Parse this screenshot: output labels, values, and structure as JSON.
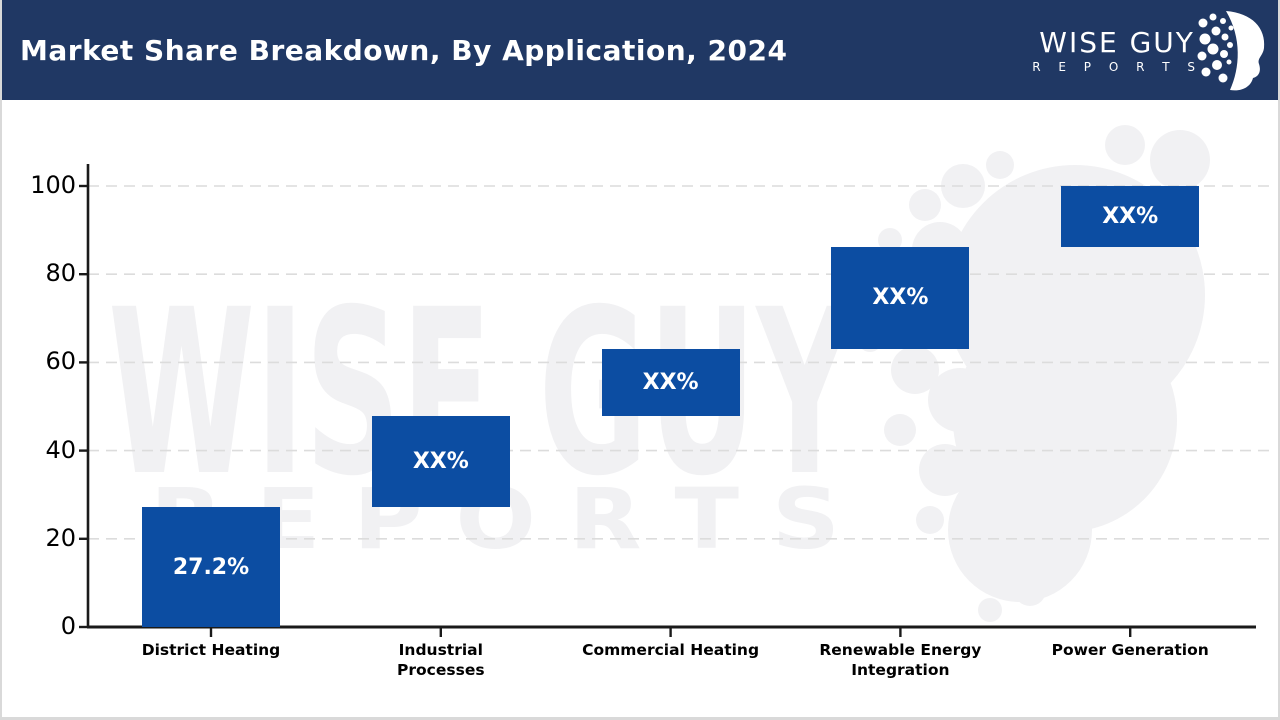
{
  "header": {
    "title": "Market Share Breakdown, By Application, 2024",
    "bg_color": "#203864",
    "text_color": "#FFFFFF"
  },
  "logo": {
    "line1": "WISE GUY",
    "line2": "R E P O R T S",
    "face_icon": "dotted-head-profile"
  },
  "watermark": {
    "line1": "WISE GUY",
    "line2": "R E P O R T S",
    "color": "#F1F1F3"
  },
  "colors": {
    "bar": "#0C4DA2",
    "grid": "#DCDCDC",
    "axis": "#1A1A1A",
    "bar_label_text": "#FFFFFF",
    "tick_text": "#000000",
    "page_border": "#D9D9D9"
  },
  "chart_data": {
    "type": "bar",
    "subtype": "waterfall",
    "title": "Market Share Breakdown, By Application, 2024",
    "categories": [
      "District Heating",
      "Industrial Processes",
      "Commercial Heating",
      "Renewable Energy Integration",
      "Power Generation"
    ],
    "tick_labels": [
      "District Heating",
      "Industrial\nProcesses",
      "Commercial Heating",
      "Renewable Energy\nIntegration",
      "Power Generation"
    ],
    "segments": [
      {
        "category": "District Heating",
        "start": 0,
        "end": 27.2,
        "label": "27.2%"
      },
      {
        "category": "Industrial Processes",
        "start": 27.2,
        "end": 47.8,
        "label": "XX%"
      },
      {
        "category": "Commercial Heating",
        "start": 47.8,
        "end": 63.0,
        "label": "XX%"
      },
      {
        "category": "Renewable Energy Integration",
        "start": 63.0,
        "end": 86.2,
        "label": "XX%"
      },
      {
        "category": "Power Generation",
        "start": 86.2,
        "end": 100,
        "label": "XX%"
      }
    ],
    "yticks": [
      0,
      20,
      40,
      60,
      80,
      100
    ],
    "ylim": [
      0,
      105
    ],
    "xlabel": "",
    "ylabel": "",
    "grid": "dashed-horizontal",
    "legend": false
  }
}
